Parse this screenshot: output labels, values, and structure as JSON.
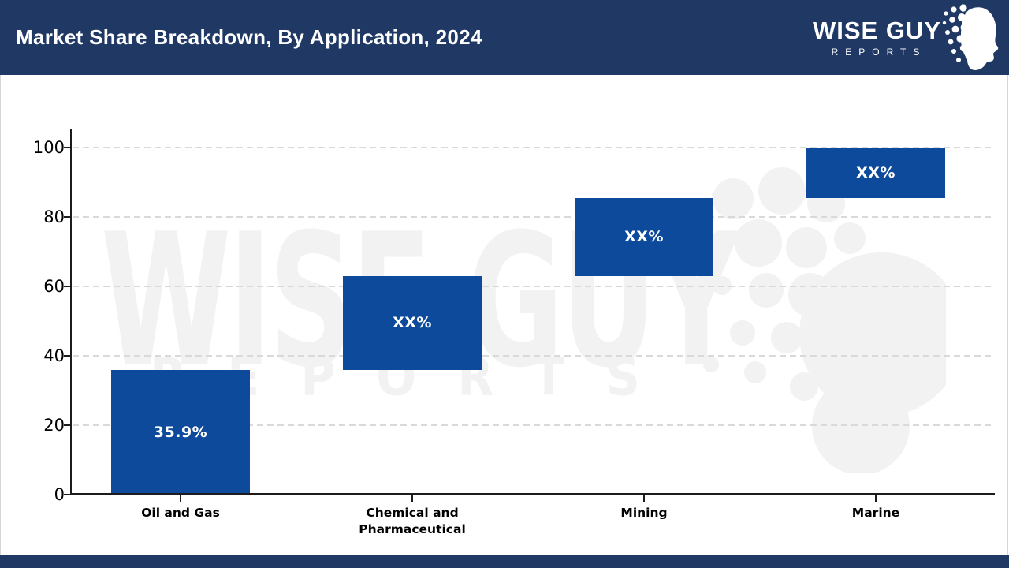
{
  "header": {
    "title": "Market Share Breakdown, By Application, 2024",
    "bg_color": "#1f3864",
    "logo": {
      "line1": "WISE GUY",
      "line2": "REPORTS"
    }
  },
  "watermark": {
    "line1": "WISE GUY",
    "line2": "REPORTS"
  },
  "chart_data": {
    "type": "bar",
    "subtype": "floating-waterfall",
    "title": "Market Share Breakdown, By Application, 2024",
    "categories": [
      "Oil and Gas",
      "Chemical and\nPharmaceutical",
      "Mining",
      "Marine"
    ],
    "series": [
      {
        "name": "Market Share",
        "segments": [
          {
            "category": "Oil and Gas",
            "start": 0,
            "end": 35.9,
            "label": "35.9%"
          },
          {
            "category": "Chemical and Pharmaceutical",
            "start": 35.9,
            "end": 63.0,
            "label": "XX%"
          },
          {
            "category": "Mining",
            "start": 63.0,
            "end": 85.5,
            "label": "XX%"
          },
          {
            "category": "Marine",
            "start": 85.5,
            "end": 100,
            "label": "XX%"
          }
        ]
      }
    ],
    "xlabel": "",
    "ylabel": "",
    "ylim": [
      0,
      100
    ],
    "yticks": [
      0,
      20,
      40,
      60,
      80,
      100
    ],
    "grid": "horizontal dashed",
    "legend": "none",
    "bar_color": "#0d4a9c",
    "bar_label_color": "#ffffff",
    "axis_color": "#1c1c1c",
    "gridline_color": "#d9d9d9",
    "watermark_color": "#f2f2f3"
  }
}
